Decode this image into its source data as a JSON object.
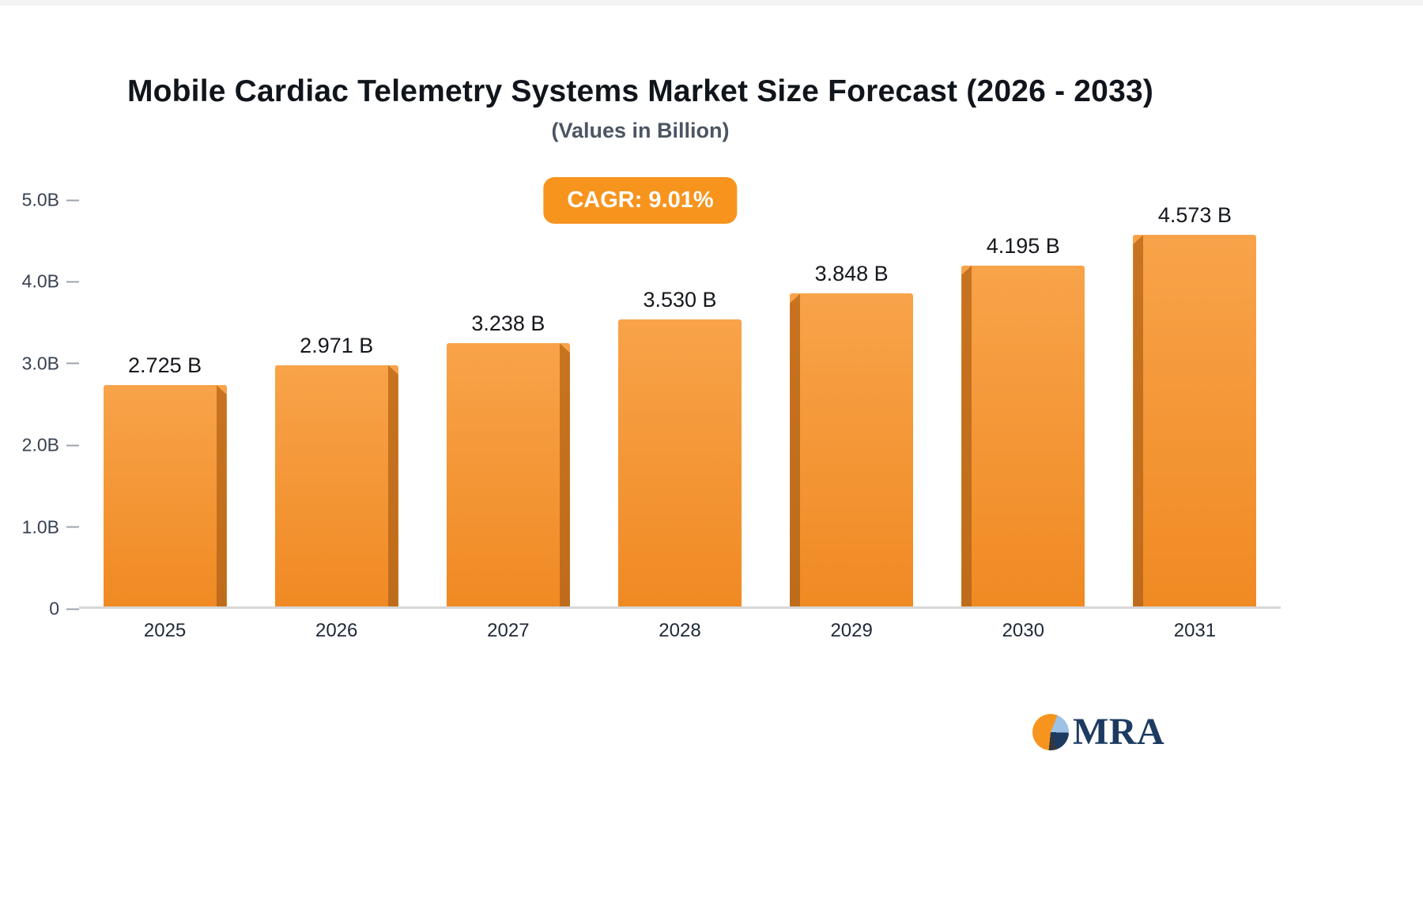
{
  "chart_data": {
    "type": "bar",
    "title": "Mobile Cardiac Telemetry Systems Market Size Forecast (2026 - 2033)",
    "subtitle": "(Values in Billion)",
    "annotations": [
      "CAGR: 9.01%"
    ],
    "categories": [
      "2025",
      "2026",
      "2027",
      "2028",
      "2029",
      "2030",
      "2031"
    ],
    "values": [
      2.725,
      2.971,
      3.238,
      3.53,
      3.848,
      4.195,
      4.573
    ],
    "value_labels": [
      "2.725 B",
      "2.971 B",
      "3.238 B",
      "3.530 B",
      "3.848 B",
      "4.195 B",
      "4.573 B"
    ],
    "xlabel": "",
    "ylabel": "",
    "ylim": [
      0,
      5
    ],
    "ytick_values": [
      0,
      1,
      2,
      3,
      4,
      5
    ],
    "ytick_labels": [
      "0",
      "1.0B",
      "2.0B",
      "3.0B",
      "4.0B",
      "5.0B"
    ],
    "grid": false,
    "legend": "none",
    "colors": {
      "bar_face_top": "#F8A34A",
      "bar_face_bottom": "#F08A23",
      "bar_side": "#C06E1E",
      "accent_orange": "#F7941E",
      "baseline_gray": "#D7D7D7",
      "logo_navy": "#1D3B61"
    }
  },
  "footer": {
    "logo_text": "MRA"
  }
}
